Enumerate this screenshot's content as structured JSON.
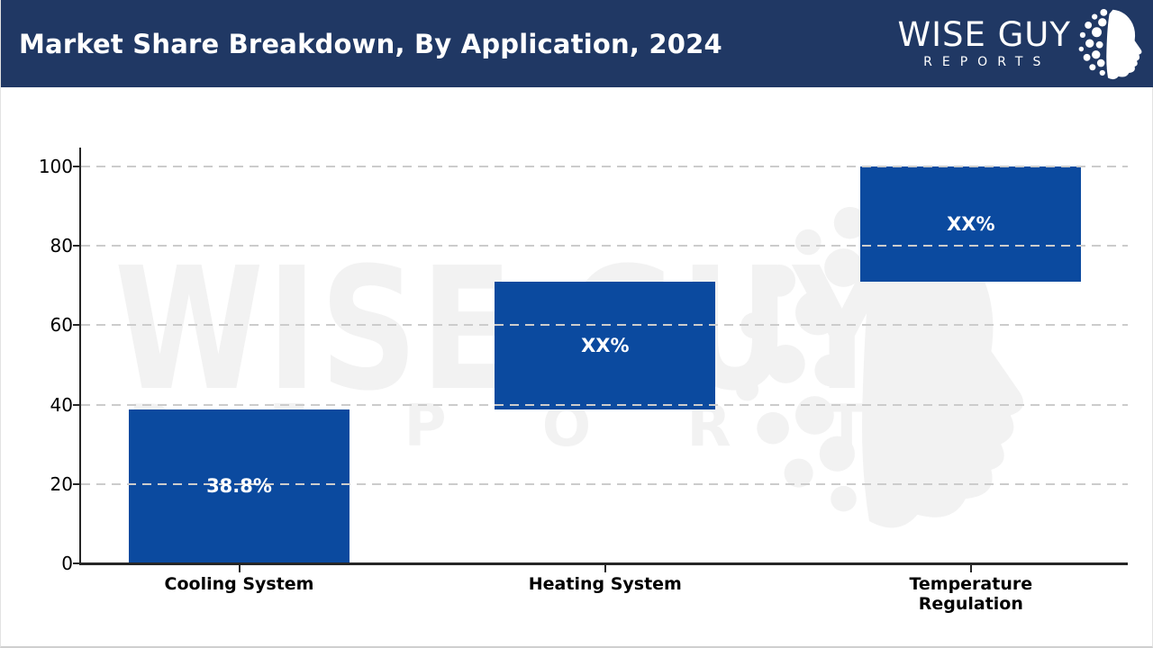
{
  "header": {
    "title": "Market Share Breakdown, By Application, 2024",
    "logo": {
      "line1": "WISE GUY",
      "line2": "REPORTS"
    }
  },
  "watermark": {
    "line1": "WISE GUY",
    "line2": "R E P O R T S"
  },
  "colors": {
    "header_bg": "#203864",
    "bar_blue": "#0b4a9f",
    "gridline": "#cccccc",
    "axis": "#262626",
    "watermark": "#f2f2f2",
    "bar_label_text": "#ffffff"
  },
  "chart_data": {
    "type": "bar",
    "subtype": "waterfall-stacked-percent",
    "title": "Market Share Breakdown, By Application, 2024",
    "xlabel": "",
    "ylabel": "",
    "ylim": [
      0,
      105
    ],
    "yticks": [
      0,
      20,
      40,
      60,
      80,
      100
    ],
    "grid": "horizontal-dashed",
    "legend": "none",
    "categories": [
      "Cooling System",
      "Heating System",
      "Temperature\nRegulation"
    ],
    "bars": [
      {
        "category": "Cooling System",
        "start": 0,
        "value": 38.8,
        "end": 38.8,
        "label": "38.8%"
      },
      {
        "category": "Heating System",
        "start": 38.8,
        "value": 32.2,
        "end": 71.0,
        "label": "XX%"
      },
      {
        "category": "Temperature\nRegulation",
        "start": 71.0,
        "value": 29.0,
        "end": 100.0,
        "label": "XX%"
      }
    ],
    "bar_color": "#0b4a9f"
  }
}
